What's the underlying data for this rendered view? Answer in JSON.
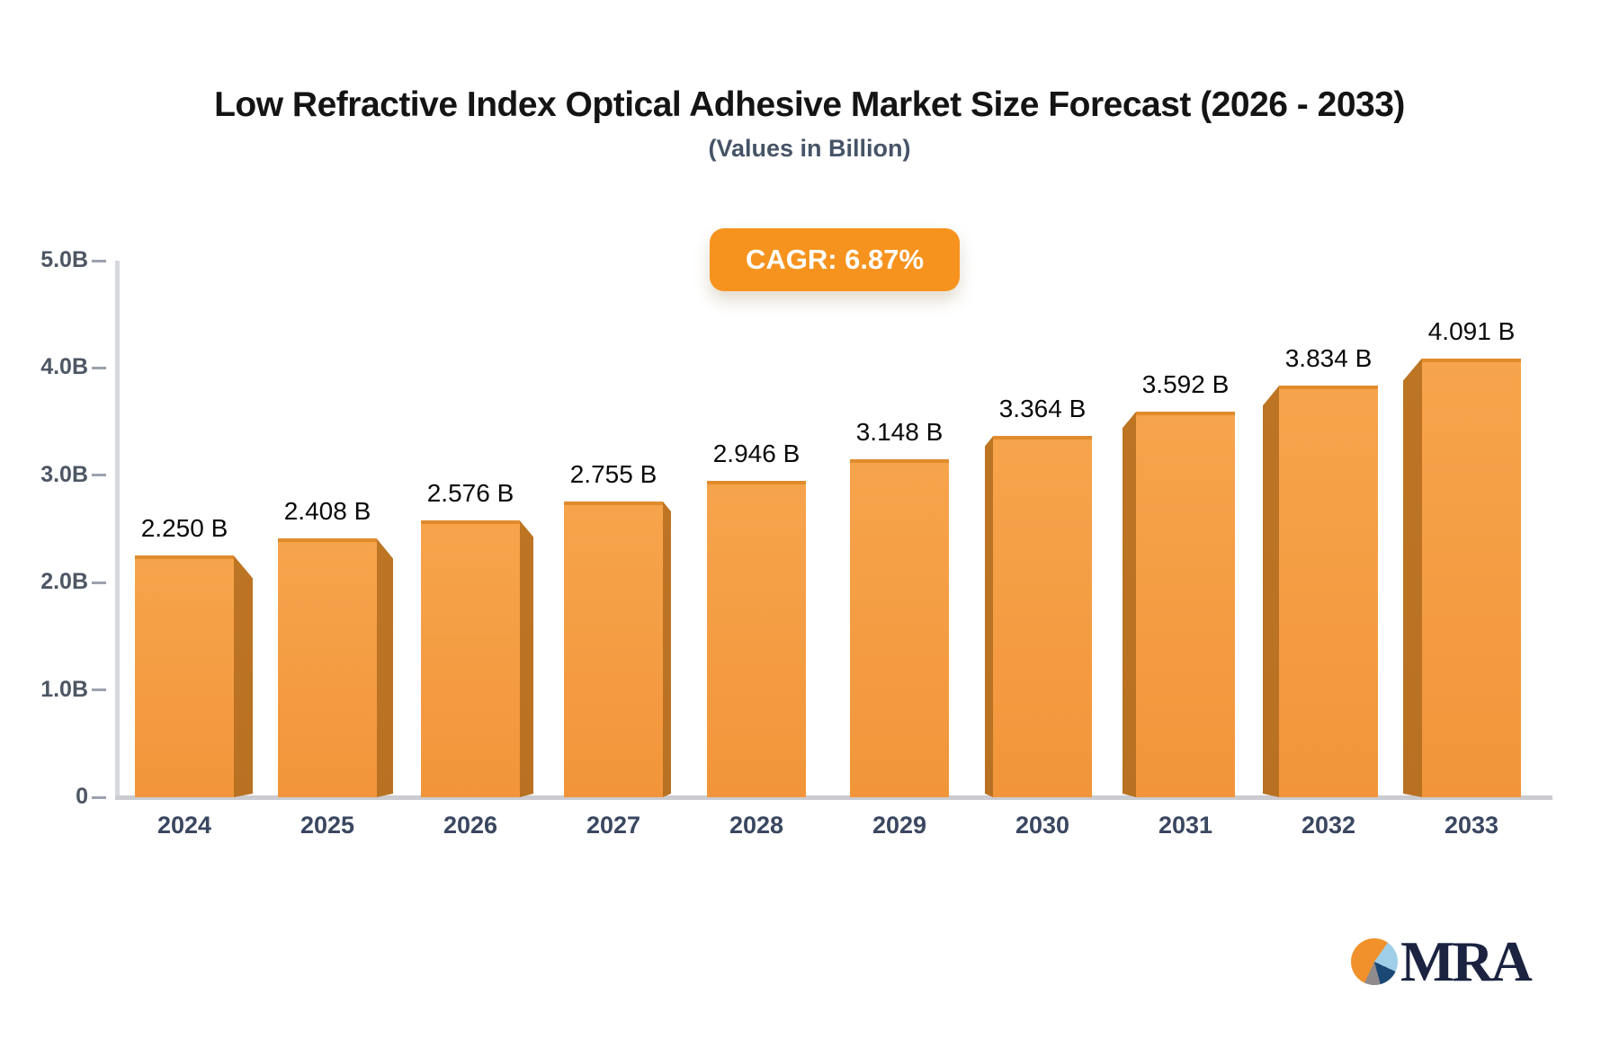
{
  "header": {
    "title": "Low Refractive Index Optical Adhesive Market Size Forecast (2026 - 2033)",
    "subtitle": "(Values in Billion)"
  },
  "badge": {
    "label": "CAGR: 6.87%",
    "color": "#F6931E",
    "text_color": "#FFFFFF"
  },
  "chart_data": {
    "type": "bar",
    "title": "Low Refractive Index Optical Adhesive Market Size Forecast (2026 - 2033)",
    "subtitle": "(Values in Billion)",
    "unit": "Billion USD",
    "categories": [
      "2024",
      "2025",
      "2026",
      "2027",
      "2028",
      "2029",
      "2030",
      "2031",
      "2032",
      "2033"
    ],
    "values": [
      2.25,
      2.408,
      2.576,
      2.755,
      2.946,
      3.148,
      3.364,
      3.592,
      3.834,
      4.091
    ],
    "value_labels": [
      "2.250 B",
      "2.408 B",
      "2.576 B",
      "2.755 B",
      "2.946 B",
      "3.148 B",
      "3.364 B",
      "3.592 B",
      "3.834 B",
      "4.091 B"
    ],
    "cagr": "6.87%",
    "ylim": [
      0,
      5
    ],
    "yticks": [
      {
        "label": "5.0B",
        "value": 5
      },
      {
        "label": "4.0B",
        "value": 4
      },
      {
        "label": "3.0B",
        "value": 3
      },
      {
        "label": "2.0B",
        "value": 2
      },
      {
        "label": "1.0B",
        "value": 1
      },
      {
        "label": "0",
        "value": 0
      }
    ],
    "grid": false,
    "legend": false,
    "colors": {
      "bar_front_top": "#F6A44C",
      "bar_front_bottom": "#F2953A",
      "bar_top_edge": "#E08B2C",
      "bar_side": "#B87122",
      "axis_line": "#D6D8DE",
      "baseline": "#CBCCD1",
      "tick": "#9BA2AD",
      "tick_text": "#4D5663",
      "category_text": "#3A4760",
      "value_text": "#0A0A0A"
    }
  },
  "logo": {
    "text": "MRA",
    "text_color": "#1B2340",
    "pie_colors": {
      "orange": "#F0912B",
      "light_blue": "#9FCFE8",
      "navy": "#1C4875",
      "gray": "#8F8A8C"
    }
  }
}
